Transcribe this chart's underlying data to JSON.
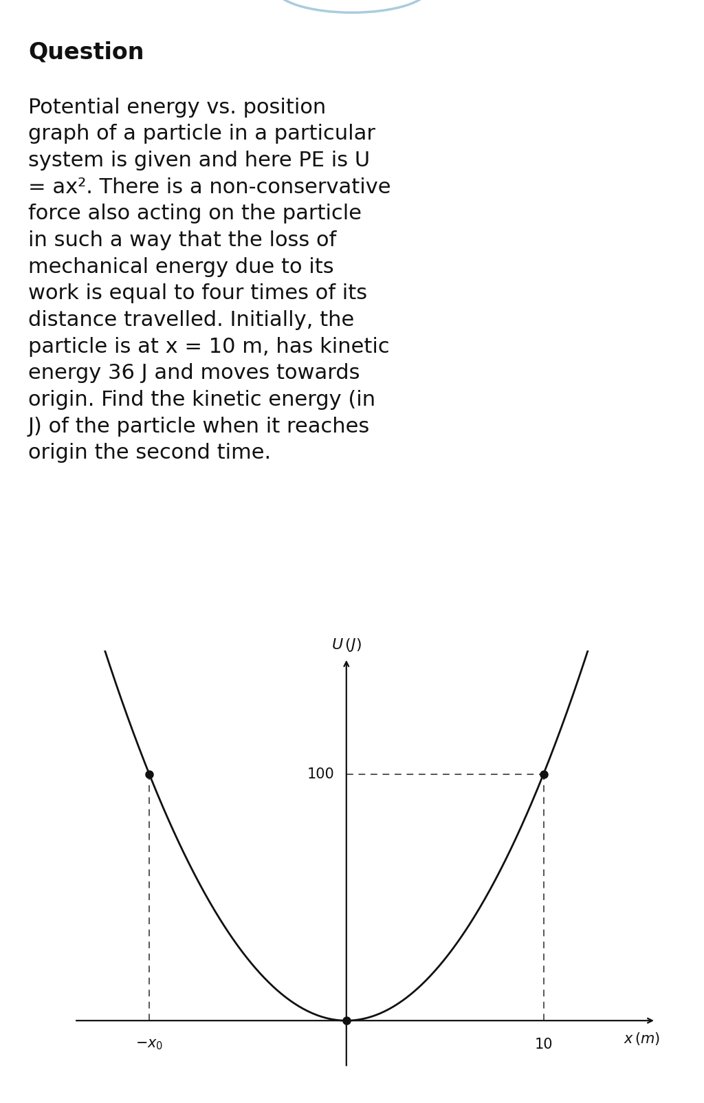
{
  "title": "Question",
  "body_lines": [
    "Potential energy vs. position",
    "graph of a particle in a particular",
    "system is given and here PE is U",
    "= ax². There is a non-conservative",
    "force also acting on the particle",
    "in such a way that the loss of",
    "mechanical energy due to its",
    "work is equal to four times of its",
    "distance travelled. Initially, the",
    "particle is at x = 10 m, has kinetic",
    "energy 36 J and moves towards",
    "origin. Find the kinetic energy (in",
    "J) of the particle when it reaches",
    "origin the second time."
  ],
  "background_color": "#ffffff",
  "text_color": "#111111",
  "title_fontsize": 24,
  "body_fontsize": 22,
  "curve_color": "#111111",
  "dashed_color": "#555555",
  "dot_color": "#111111",
  "a_coeff": 1,
  "x_min": -14,
  "x_max": 16,
  "y_min": -20,
  "y_max": 150,
  "x0_val": -10,
  "x1_val": 10,
  "u_ref": 100
}
